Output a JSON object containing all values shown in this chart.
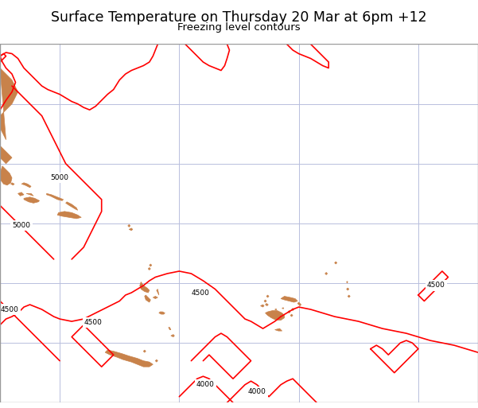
{
  "title": "Surface Temperature on Thursday 20 Mar at 6pm +12",
  "subtitle": "Freezing level contours",
  "ocean_color": "#cdd3e8",
  "land_color": "#c8824a",
  "contour_color": "#ff0000",
  "grid_color": "#b8bedd",
  "title_fontsize": 12.5,
  "subtitle_fontsize": 9.5,
  "fig_width": 6.01,
  "fig_height": 5.13,
  "dpi": 100,
  "xlim": [
    155.0,
    195.0
  ],
  "ylim": [
    -25.0,
    5.0
  ],
  "border_color": "#999999",
  "white": "#ffffff"
}
